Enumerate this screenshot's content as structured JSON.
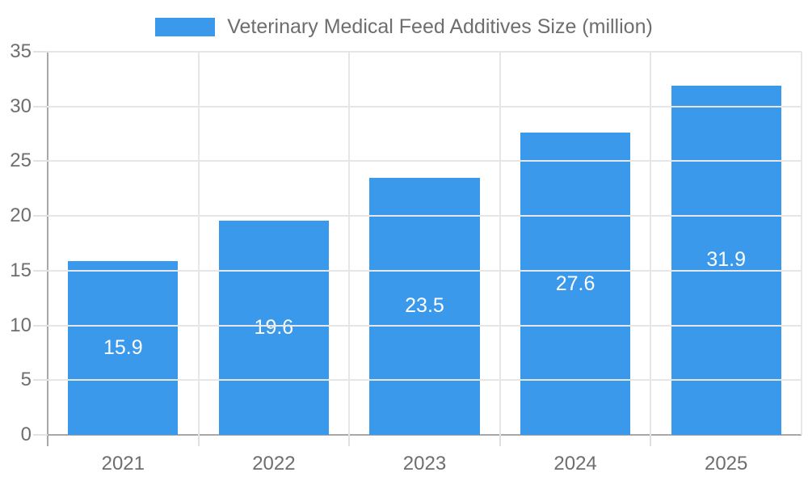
{
  "chart_data": {
    "type": "bar",
    "title": "Veterinary Medical Feed Additives Size (million)",
    "categories": [
      "2021",
      "2022",
      "2023",
      "2024",
      "2025"
    ],
    "values": [
      15.9,
      19.6,
      23.5,
      27.6,
      31.9
    ],
    "series": [
      {
        "name": "Veterinary Medical Feed Additives Size (million)",
        "values": [
          15.9,
          19.6,
          23.5,
          27.6,
          31.9
        ]
      }
    ],
    "xlabel": "",
    "ylabel": "",
    "ylim": [
      0,
      35
    ],
    "yticks": [
      0,
      5,
      10,
      15,
      20,
      25,
      30,
      35
    ],
    "grid": true,
    "legend_position": "top-center",
    "value_labels": "inside-center",
    "value_decimals": 1
  },
  "colors": {
    "bar": "#3B99EC",
    "value_label": "#FFFFFF",
    "axis_text": "#6E6E6E",
    "legend_text": "#6E6E6E",
    "gridline": "#E6E6E6",
    "axis_line": "#A8A8A8"
  },
  "legend": {
    "label": "Veterinary Medical Feed Additives Size (million)"
  }
}
